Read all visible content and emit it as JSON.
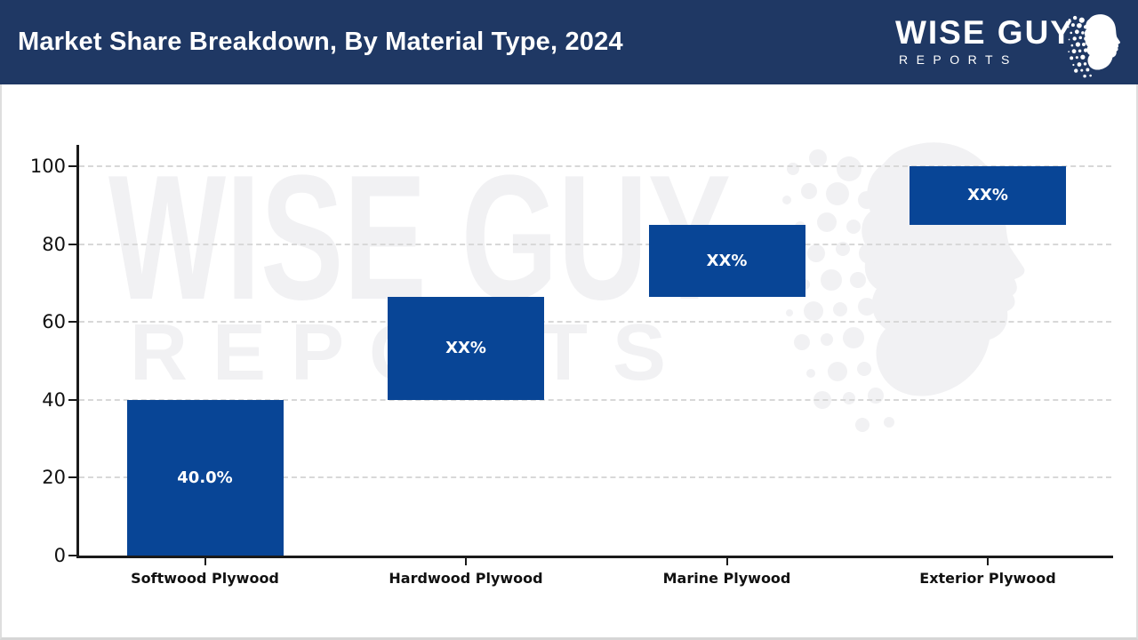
{
  "header": {
    "title": "Market Share Breakdown, By Material Type, 2024",
    "bg_color": "#1f3864",
    "brand": {
      "line1": "WISE GUY",
      "line2": "REPORTS"
    }
  },
  "watermark": {
    "line1": "WISE GUY",
    "line2": "REPORTS"
  },
  "chart_data": {
    "type": "bar",
    "subtype": "waterfall",
    "title": "Market Share Breakdown, By Material Type, 2024",
    "categories": [
      "Softwood Plywood",
      "Hardwood Plywood",
      "Marine Plywood",
      "Exterior Plywood"
    ],
    "segments": [
      {
        "category": "Softwood Plywood",
        "start": 0,
        "end": 40,
        "label": "40.0%"
      },
      {
        "category": "Hardwood Plywood",
        "start": 40,
        "end": 66.5,
        "label": "XX%"
      },
      {
        "category": "Marine Plywood",
        "start": 66.5,
        "end": 85,
        "label": "XX%"
      },
      {
        "category": "Exterior Plywood",
        "start": 85,
        "end": 100,
        "label": "XX%"
      }
    ],
    "xlabel": "",
    "ylabel": "",
    "ylim": [
      0,
      100
    ],
    "yticks": [
      0,
      20,
      40,
      60,
      80,
      100
    ],
    "grid": "horizontal-dashed",
    "legend": "none",
    "bar_color": "#084596",
    "bar_label_color": "#ffffff",
    "axis_color": "#1a1a1a"
  }
}
